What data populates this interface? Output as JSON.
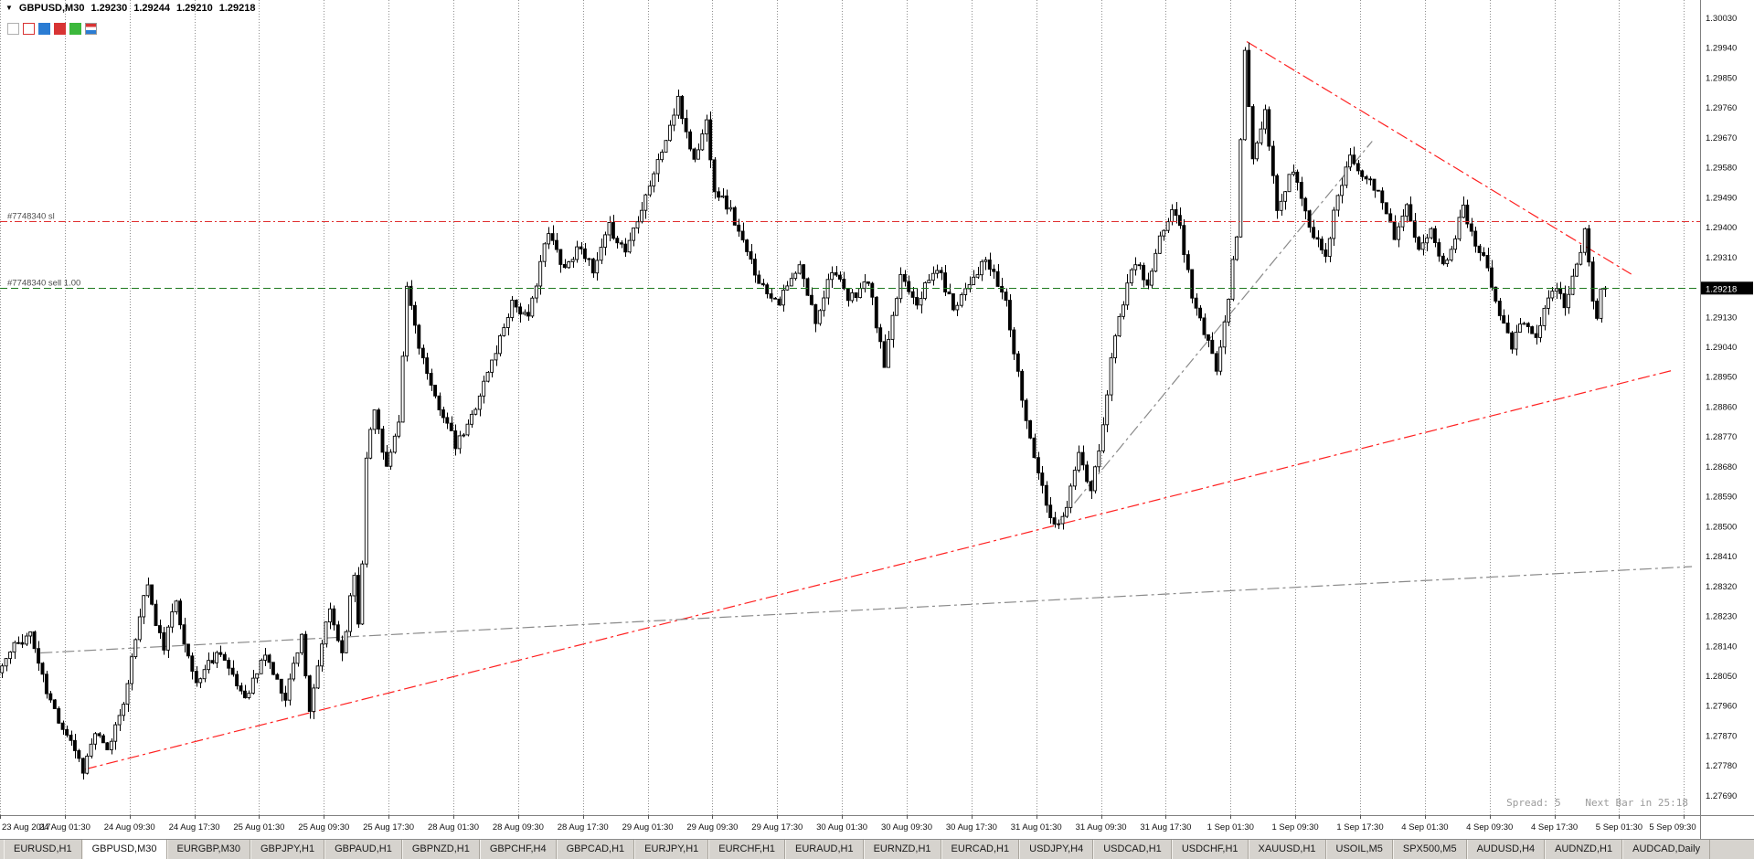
{
  "header": {
    "menu_arrow": "▼",
    "symbol_period": "GBPUSD,M30",
    "open": "1.29230",
    "high": "1.29244",
    "low": "1.29210",
    "close": "1.29218"
  },
  "toolbar_objects": [
    {
      "name": "object-square-white-icon",
      "fill": "#ffffff",
      "border": "#b0b0b0"
    },
    {
      "name": "object-square-red-outline-icon",
      "fill": "#ffffff",
      "border": "#d83434"
    },
    {
      "name": "object-square-blue-icon",
      "fill": "#2b7cd3",
      "border": "#2b7cd3"
    },
    {
      "name": "object-square-red-icon",
      "fill": "#d83434",
      "border": "#d83434"
    },
    {
      "name": "object-square-green-icon",
      "fill": "#3cb83c",
      "border": "#3cb83c"
    },
    {
      "name": "object-flag-red-blue-icon",
      "stripes": true
    }
  ],
  "status": {
    "spread": "Spread: 5",
    "next_bar": "Next Bar in 25:18"
  },
  "tabs": {
    "items": [
      "EURUSD,H1",
      "GBPUSD,M30",
      "EURGBP,M30",
      "GBPJPY,H1",
      "GBPAUD,H1",
      "GBPNZD,H1",
      "GBPCHF,H4",
      "GBPCAD,H1",
      "EURJPY,H1",
      "EURCHF,H1",
      "EURAUD,H1",
      "EURNZD,H1",
      "EURCAD,H1",
      "USDJPY,H4",
      "USDCAD,H1",
      "USDCHF,H1",
      "XAUUSD,H1",
      "USOIL,M5",
      "SPX500,M5",
      "AUDUSD,H4",
      "AUDNZD,H1",
      "AUDCAD,Daily"
    ],
    "active": "GBPUSD,M30"
  },
  "chart_data": {
    "type": "candlestick",
    "symbol": "GBPUSD",
    "timeframe": "M30",
    "price_range": [
      1.27632,
      1.30085
    ],
    "bars_total": 420,
    "bars_per_gridline": 16,
    "last_bar": 396,
    "current_close": 1.29218,
    "y_ticks": [
      "1.30030",
      "1.29940",
      "1.29850",
      "1.29760",
      "1.29670",
      "1.29580",
      "1.29490",
      "1.29400",
      "1.29310",
      "1.29220",
      "1.29130",
      "1.29040",
      "1.28950",
      "1.28860",
      "1.28770",
      "1.28680",
      "1.28590",
      "1.28500",
      "1.28410",
      "1.28320",
      "1.28230",
      "1.28140",
      "1.28050",
      "1.27960",
      "1.27870",
      "1.27780",
      "1.27690"
    ],
    "x_ticks": [
      "23 Aug 2017",
      "24 Aug 01:30",
      "24 Aug 09:30",
      "24 Aug 17:30",
      "25 Aug 01:30",
      "25 Aug 09:30",
      "25 Aug 17:30",
      "28 Aug 01:30",
      "28 Aug 09:30",
      "28 Aug 17:30",
      "29 Aug 01:30",
      "29 Aug 09:30",
      "29 Aug 17:30",
      "30 Aug 01:30",
      "30 Aug 09:30",
      "30 Aug 17:30",
      "31 Aug 01:30",
      "31 Aug 09:30",
      "31 Aug 17:30",
      "1 Sep 01:30",
      "1 Sep 09:30",
      "1 Sep 17:30",
      "4 Sep 01:30",
      "4 Sep 09:30",
      "4 Sep 17:30",
      "5 Sep 01:30",
      "5 Sep 09:30"
    ],
    "order_lines": [
      {
        "kind": "stop-loss",
        "label": "#7748340 sl",
        "price": 1.2942,
        "color": "#e03030",
        "dash": "8 3 2 3"
      },
      {
        "kind": "sell-position",
        "label": "#7748340 sell 1.00",
        "price": 1.29218,
        "color": "#1e7a1e",
        "dash": "8 4"
      }
    ],
    "trend_lines": [
      {
        "name": "ascending-support-red",
        "color": "#ff2020",
        "from": [
          21,
          1.2777
        ],
        "to": [
          413,
          1.2897
        ]
      },
      {
        "name": "descending-resistance-red",
        "color": "#ff2020",
        "from": [
          308,
          1.2996
        ],
        "to": [
          403,
          1.2926
        ]
      },
      {
        "name": "ascending-shallow-gray",
        "color": "#8a8a8a",
        "from": [
          10,
          1.2812
        ],
        "to": [
          418,
          1.2838
        ]
      },
      {
        "name": "ascending-steep-gray",
        "color": "#8a8a8a",
        "from": [
          262,
          1.2852
        ],
        "to": [
          339,
          1.2966
        ]
      }
    ],
    "price_path": [
      [
        0,
        1.2806
      ],
      [
        4,
        1.2814
      ],
      [
        8,
        1.2818
      ],
      [
        12,
        1.28
      ],
      [
        15,
        1.2792
      ],
      [
        18,
        1.2786
      ],
      [
        21,
        1.2777
      ],
      [
        24,
        1.2788
      ],
      [
        27,
        1.2782
      ],
      [
        30,
        1.2794
      ],
      [
        32,
        1.2802
      ],
      [
        35,
        1.2824
      ],
      [
        37,
        1.2833
      ],
      [
        39,
        1.282
      ],
      [
        41,
        1.2814
      ],
      [
        44,
        1.2828
      ],
      [
        47,
        1.281
      ],
      [
        49,
        1.2803
      ],
      [
        52,
        1.2809
      ],
      [
        55,
        1.2813
      ],
      [
        58,
        1.2804
      ],
      [
        61,
        1.2799
      ],
      [
        64,
        1.2806
      ],
      [
        66,
        1.2812
      ],
      [
        69,
        1.2803
      ],
      [
        71,
        1.2799
      ],
      [
        75,
        1.2818
      ],
      [
        77,
        1.2793
      ],
      [
        80,
        1.2815
      ],
      [
        82,
        1.2825
      ],
      [
        85,
        1.2812
      ],
      [
        88,
        1.2836
      ],
      [
        89,
        1.2821
      ],
      [
        90,
        1.284
      ],
      [
        91,
        1.2872
      ],
      [
        93,
        1.2885
      ],
      [
        96,
        1.2868
      ],
      [
        99,
        1.288
      ],
      [
        101,
        1.2922
      ],
      [
        104,
        1.2905
      ],
      [
        107,
        1.2891
      ],
      [
        110,
        1.2884
      ],
      [
        113,
        1.2874
      ],
      [
        116,
        1.288
      ],
      [
        119,
        1.289
      ],
      [
        123,
        1.2903
      ],
      [
        127,
        1.2918
      ],
      [
        131,
        1.2912
      ],
      [
        134,
        1.293
      ],
      [
        136,
        1.2938
      ],
      [
        140,
        1.2928
      ],
      [
        144,
        1.2935
      ],
      [
        147,
        1.2926
      ],
      [
        151,
        1.294
      ],
      [
        155,
        1.2933
      ],
      [
        160,
        1.295
      ],
      [
        164,
        1.2963
      ],
      [
        168,
        1.2978
      ],
      [
        172,
        1.296
      ],
      [
        175,
        1.2972
      ],
      [
        177,
        1.2952
      ],
      [
        181,
        1.2945
      ],
      [
        185,
        1.2932
      ],
      [
        189,
        1.2922
      ],
      [
        193,
        1.2918
      ],
      [
        198,
        1.2928
      ],
      [
        202,
        1.2912
      ],
      [
        206,
        1.2928
      ],
      [
        210,
        1.2918
      ],
      [
        215,
        1.2924
      ],
      [
        219,
        1.2898
      ],
      [
        223,
        1.2926
      ],
      [
        227,
        1.2918
      ],
      [
        232,
        1.2928
      ],
      [
        236,
        1.2916
      ],
      [
        240,
        1.2924
      ],
      [
        244,
        1.293
      ],
      [
        249,
        1.2918
      ],
      [
        251,
        1.2902
      ],
      [
        254,
        1.2882
      ],
      [
        258,
        1.2862
      ],
      [
        261,
        1.285
      ],
      [
        264,
        1.2856
      ],
      [
        267,
        1.2872
      ],
      [
        270,
        1.286
      ],
      [
        273,
        1.288
      ],
      [
        275,
        1.2902
      ],
      [
        278,
        1.2918
      ],
      [
        281,
        1.293
      ],
      [
        284,
        1.2922
      ],
      [
        287,
        1.2936
      ],
      [
        290,
        1.2946
      ],
      [
        292,
        1.294
      ],
      [
        295,
        1.292
      ],
      [
        298,
        1.2908
      ],
      [
        301,
        1.2898
      ],
      [
        304,
        1.292
      ],
      [
        306,
        1.2938
      ],
      [
        308,
        1.2994
      ],
      [
        310,
        1.296
      ],
      [
        313,
        1.2974
      ],
      [
        316,
        1.2945
      ],
      [
        320,
        1.2958
      ],
      [
        324,
        1.294
      ],
      [
        328,
        1.2932
      ],
      [
        331,
        1.295
      ],
      [
        334,
        1.2962
      ],
      [
        338,
        1.2955
      ],
      [
        342,
        1.2948
      ],
      [
        345,
        1.2938
      ],
      [
        348,
        1.2946
      ],
      [
        351,
        1.2932
      ],
      [
        354,
        1.2941
      ],
      [
        357,
        1.2928
      ],
      [
        360,
        1.2938
      ],
      [
        362,
        1.2946
      ],
      [
        365,
        1.2936
      ],
      [
        368,
        1.2928
      ],
      [
        371,
        1.2915
      ],
      [
        374,
        1.2905
      ],
      [
        377,
        1.2912
      ],
      [
        380,
        1.2908
      ],
      [
        382,
        1.2916
      ],
      [
        385,
        1.2922
      ],
      [
        387,
        1.2916
      ],
      [
        389,
        1.2925
      ],
      [
        391,
        1.2932
      ],
      [
        392,
        1.294
      ],
      [
        394,
        1.2918
      ],
      [
        395,
        1.2913
      ],
      [
        396,
        1.29218
      ]
    ],
    "noise": {
      "body": 0.00016,
      "wick": 0.00026,
      "seed": 11
    }
  }
}
